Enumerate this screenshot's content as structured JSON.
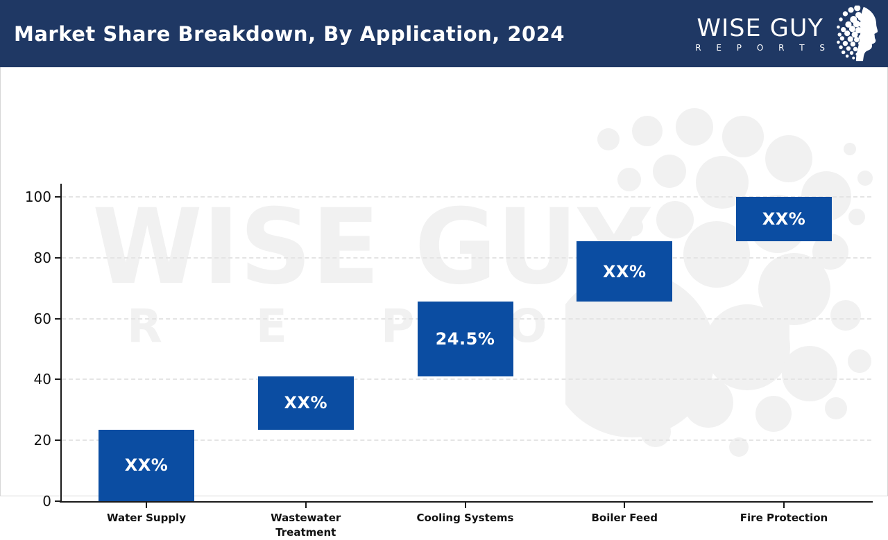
{
  "header": {
    "title": "Market Share Breakdown, By Application, 2024",
    "bg_color": "#1f3864",
    "logo": {
      "line1": "WISE GUY",
      "line2": "R E P O R T S",
      "face_icon": "dotted-head-profile"
    }
  },
  "watermark": {
    "line1": "WISE GUY",
    "line2": "R E P O R T S",
    "color": "#f1f1f1"
  },
  "chart_data": {
    "type": "bar",
    "subtype": "waterfall",
    "title": "Market Share Breakdown, By Application, 2024",
    "categories": [
      "Water Supply",
      "Wastewater Treatment",
      "Cooling Systems",
      "Boiler Feed",
      "Fire Protection"
    ],
    "segments": [
      {
        "category": "Water Supply",
        "start": 0,
        "end": 23.5,
        "label": "XX%"
      },
      {
        "category": "Wastewater Treatment",
        "start": 23.5,
        "end": 41,
        "label": "XX%"
      },
      {
        "category": "Cooling Systems",
        "start": 41,
        "end": 65.5,
        "label": "24.5%"
      },
      {
        "category": "Boiler Feed",
        "start": 65.5,
        "end": 85.5,
        "label": "XX%"
      },
      {
        "category": "Fire Protection",
        "start": 85.5,
        "end": 100,
        "label": "XX%"
      }
    ],
    "xlabel": "",
    "ylabel": "",
    "ylim": [
      0,
      105
    ],
    "yticks": [
      0,
      20,
      40,
      60,
      80,
      100
    ],
    "grid": "horizontal-dashed",
    "legend": "none",
    "bar_color": "#0b4da2",
    "bar_label_color": "#ffffff",
    "axis_color": "#1a1a1a",
    "gridline_color": "#e4e4e4"
  }
}
